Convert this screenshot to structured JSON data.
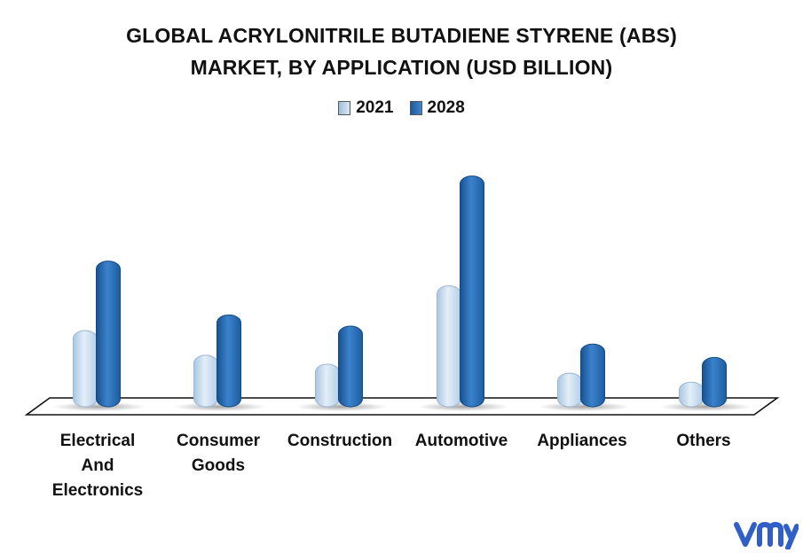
{
  "title_line1": "GLOBAL ACRYLONITRILE BUTADIENE STYRENE (ABS)",
  "title_line2": "MARKET, BY APPLICATION (USD BILLION)",
  "colors": {
    "series_2021": "#c9dcef",
    "series_2028": "#2a6db5"
  },
  "chart_data": {
    "type": "bar",
    "categories": [
      "Electrical And Electronics",
      "Consumer Goods",
      "Construction",
      "Automotive",
      "Appliances",
      "Others"
    ],
    "category_lines": [
      [
        "Electrical",
        "And",
        "Electronics"
      ],
      [
        "Consumer",
        "Goods"
      ],
      [
        "Construction"
      ],
      [
        "Automotive"
      ],
      [
        "Appliances"
      ],
      [
        "Others"
      ]
    ],
    "series": [
      {
        "name": "2021",
        "values": [
          3.4,
          2.3,
          1.9,
          5.4,
          1.5,
          1.1
        ]
      },
      {
        "name": "2028",
        "values": [
          6.5,
          4.1,
          3.6,
          10.3,
          2.8,
          2.2
        ]
      }
    ],
    "ylim": [
      0,
      10.6
    ],
    "grid": false,
    "legend_position": "top"
  }
}
